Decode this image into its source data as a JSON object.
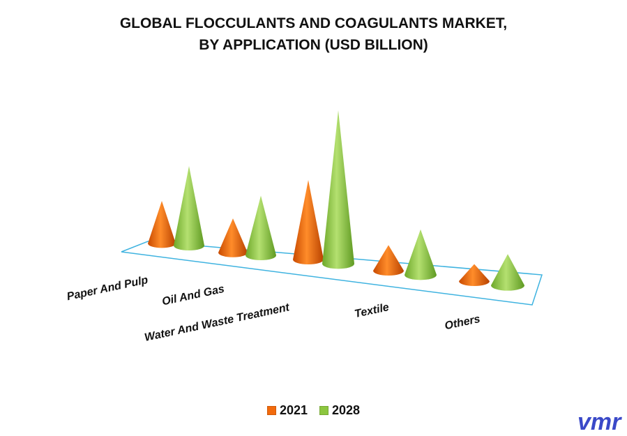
{
  "title_line1": "GLOBAL FLOCCULANTS AND COAGULANTS MARKET,",
  "title_line2": "BY APPLICATION (USD BILLION)",
  "colors": {
    "2021": "#F26A0C",
    "2028": "#8CC63F",
    "floor": "#3FB3E0"
  },
  "legend": [
    {
      "label": "2021",
      "icon": "orange-square-icon"
    },
    {
      "label": "2028",
      "icon": "green-square-icon"
    }
  ],
  "logo_text": "vmr",
  "chart_data": {
    "type": "bar",
    "shape": "cone",
    "title": "GLOBAL FLOCCULANTS AND COAGULANTS MARKET, BY APPLICATION (USD BILLION)",
    "categories": [
      "Paper And Pulp",
      "Oil And Gas",
      "Water And Waste Treatment",
      "Textile",
      "Others"
    ],
    "series": [
      {
        "name": "2021",
        "values": [
          1.5,
          1.2,
          2.8,
          0.9,
          0.6
        ]
      },
      {
        "name": "2028",
        "values": [
          2.8,
          2.1,
          5.4,
          1.6,
          1.1
        ]
      }
    ],
    "legend_position": "bottom",
    "grid": false
  }
}
